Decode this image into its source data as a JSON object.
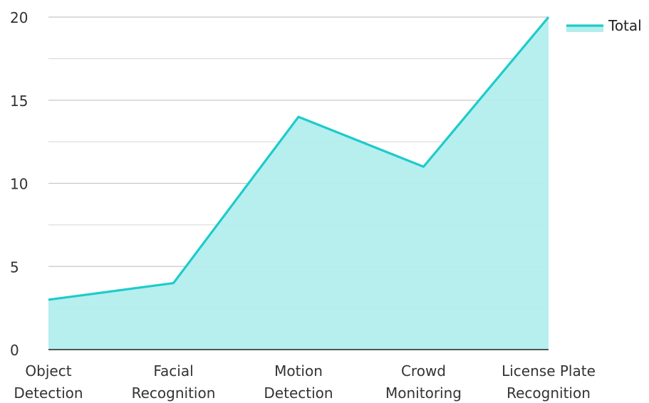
{
  "chart_data": {
    "type": "area",
    "categories": [
      [
        "Object",
        "Detection"
      ],
      [
        "Facial",
        "Recognition"
      ],
      [
        "Motion",
        "Detection"
      ],
      [
        "Crowd",
        "Monitoring"
      ],
      [
        "License Plate",
        "Recognition"
      ]
    ],
    "series": [
      {
        "name": "Total",
        "values": [
          3,
          4,
          14,
          11,
          20
        ]
      }
    ],
    "ylim": [
      0,
      20
    ],
    "yticks": [
      "0",
      "5",
      "10",
      "15",
      "20"
    ],
    "grid": true,
    "legend_position": "top-right",
    "colors": {
      "line": "#1ecbcb",
      "fill": "#b2eeed",
      "grid": "#c8c8c8",
      "axis": "#222222"
    }
  }
}
